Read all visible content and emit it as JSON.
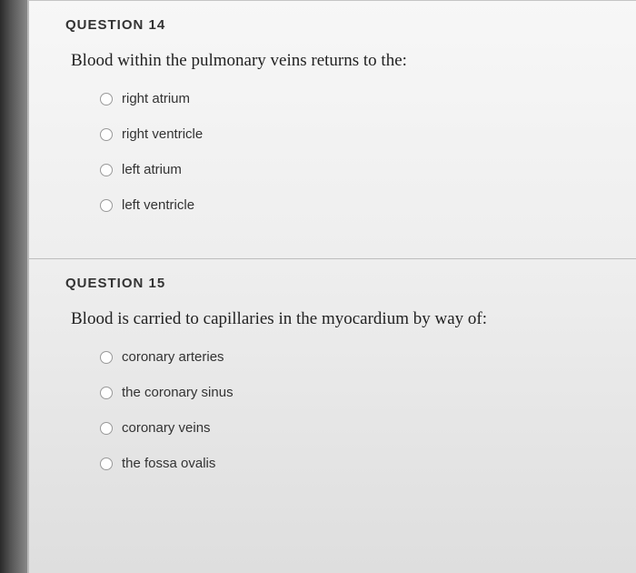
{
  "questions": [
    {
      "header": "QUESTION 14",
      "text": "Blood within the pulmonary veins returns to the:",
      "options": [
        "right atrium",
        "right ventricle",
        "left atrium",
        "left ventricle"
      ]
    },
    {
      "header": "QUESTION 15",
      "text": "Blood is carried to capillaries in the myocardium by way of:",
      "options": [
        "coronary arteries",
        "the coronary sinus",
        "coronary veins",
        "the fossa ovalis"
      ]
    }
  ]
}
